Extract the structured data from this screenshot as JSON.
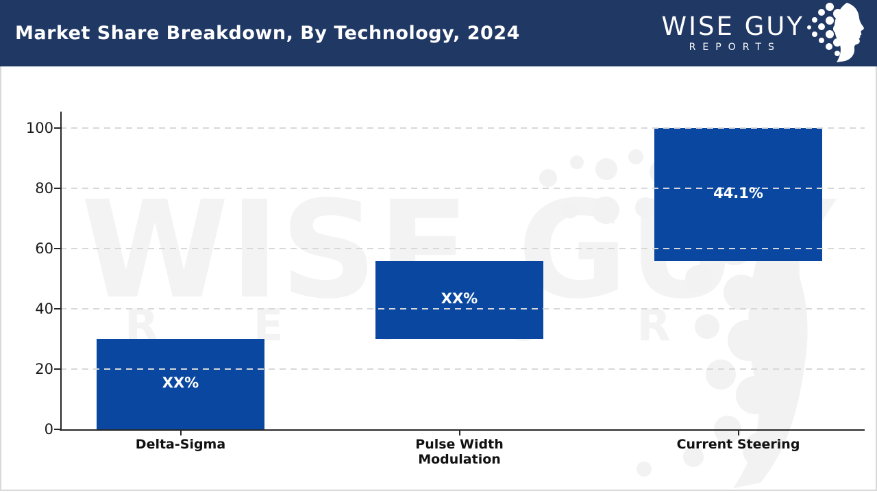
{
  "header": {
    "title": "Market Share Breakdown, By Technology, 2024",
    "logo": {
      "name": "WISE GUY",
      "sub": "REPORTS"
    },
    "bg_color": "#203864"
  },
  "watermark": {
    "big": "WISE GUY",
    "sub": "R E P O R T S"
  },
  "chart_data": {
    "type": "bar",
    "subtype": "waterfall",
    "title": "Market Share Breakdown, By Technology, 2024",
    "xlabel": "",
    "ylabel": "",
    "categories": [
      "Delta-Sigma",
      "Pulse Width Modulation",
      "Current Steering"
    ],
    "category_lines": [
      [
        "Delta-Sigma"
      ],
      [
        "Pulse Width",
        "Modulation"
      ],
      [
        "Current Steering"
      ]
    ],
    "segments": [
      {
        "category": "Delta-Sigma",
        "start": 0,
        "end": 30,
        "label": "XX%"
      },
      {
        "category": "Pulse Width Modulation",
        "start": 30,
        "end": 55.9,
        "label": "XX%"
      },
      {
        "category": "Current Steering",
        "start": 55.9,
        "end": 100,
        "label": "44.1%"
      }
    ],
    "ylim": [
      0,
      100
    ],
    "yticks": [
      0,
      20,
      40,
      60,
      80,
      100
    ],
    "grid": true,
    "legend": false,
    "bar_color": "#0a47a0",
    "label_color": "#ffffff",
    "grid_color": "#d8d8d8",
    "axis_color": "#262626"
  }
}
